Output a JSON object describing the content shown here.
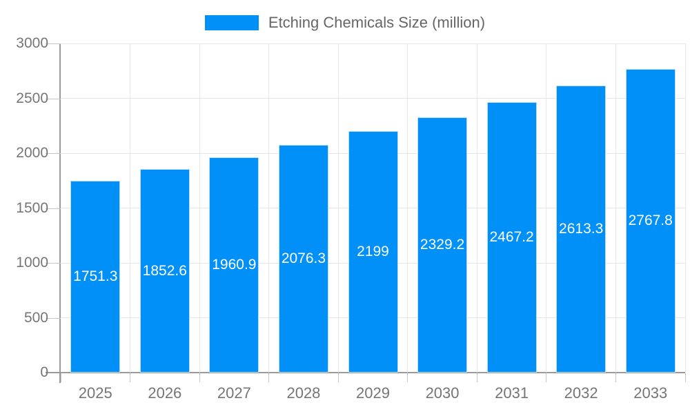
{
  "chart_data": {
    "type": "bar",
    "title": "Etching Chemicals Size (million)",
    "categories": [
      "2025",
      "2026",
      "2027",
      "2028",
      "2029",
      "2030",
      "2031",
      "2032",
      "2033"
    ],
    "values": [
      1751.3,
      1852.6,
      1960.9,
      2076.3,
      2199,
      2329.2,
      2467.2,
      2613.3,
      2767.8
    ],
    "value_labels": [
      "1751.3",
      "1852.6",
      "1960.9",
      "2076.3",
      "2199",
      "2329.2",
      "2467.2",
      "2613.3",
      "2767.8"
    ],
    "xlabel": "",
    "ylabel": "",
    "ylim": [
      0,
      3000
    ],
    "yticks": [
      0,
      500,
      1000,
      1500,
      2000,
      2500,
      3000
    ],
    "grid": true,
    "legend_position": "top",
    "value_label_placement": "inside-center",
    "colors": {
      "bar": "#0190F8",
      "grid": "#e6e6e6",
      "axis_line": "#999999",
      "tick": "#c6c6c6",
      "axis_text": "#757575",
      "legend_text": "#666666",
      "bar_label": "#ffffff",
      "background": "#ffffff"
    }
  }
}
